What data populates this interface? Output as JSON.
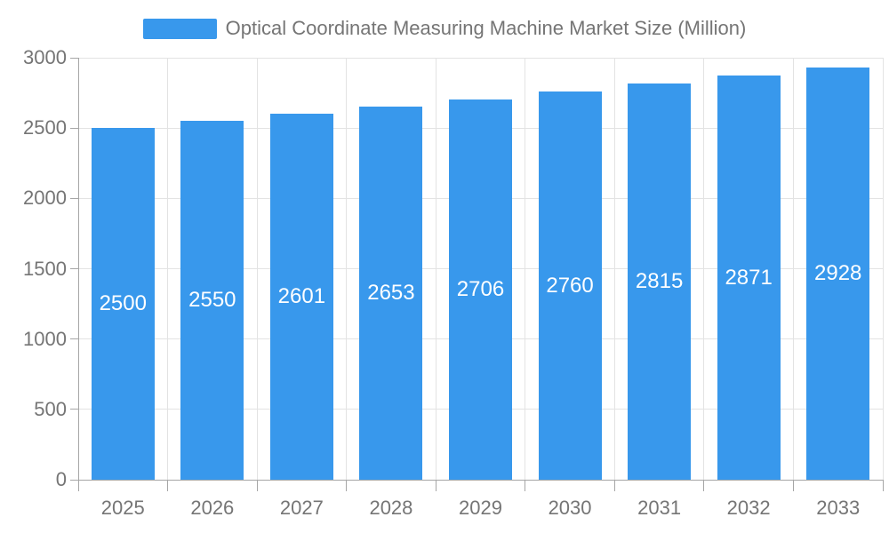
{
  "chart_data": {
    "type": "bar",
    "title": "Optical Coordinate Measuring Machine Market Size (Million)",
    "legend_position": "top",
    "categories": [
      "2025",
      "2026",
      "2027",
      "2028",
      "2029",
      "2030",
      "2031",
      "2032",
      "2033"
    ],
    "series": [
      {
        "name": "Optical Coordinate Measuring Machine Market Size (Million)",
        "values": [
          2500,
          2550,
          2601,
          2653,
          2706,
          2760,
          2815,
          2871,
          2928
        ]
      }
    ],
    "bar_value_labels": [
      "2500",
      "2550",
      "2601",
      "2653",
      "2706",
      "2760",
      "2815",
      "2871",
      "2928"
    ],
    "xlabel": "",
    "ylabel": "",
    "ylim": [
      0,
      3000
    ],
    "yticks": [
      0,
      500,
      1000,
      1500,
      2000,
      2500,
      3000
    ],
    "grid": true,
    "colors": {
      "bar": "#3898EC",
      "bar_value_label": "#FFFFFF",
      "axis_text": "#757575",
      "grid_line": "#E3E3E3",
      "axis_line": "#A6A6A6",
      "background": "#FFFFFF"
    }
  }
}
